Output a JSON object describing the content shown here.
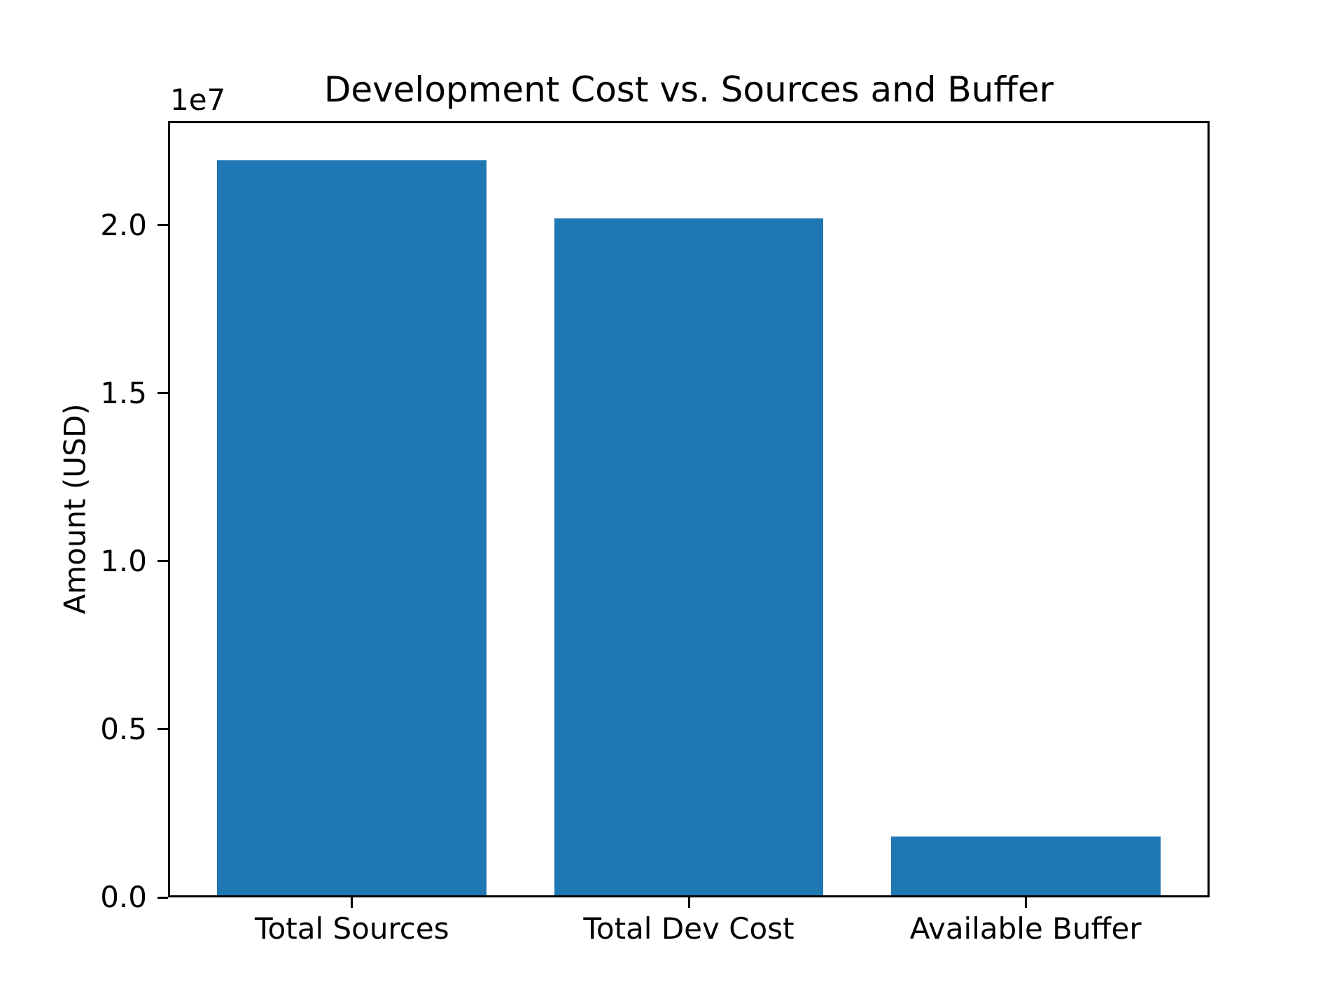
{
  "chart_data": {
    "type": "bar",
    "title": "Development Cost vs. Sources and Buffer",
    "xlabel": "",
    "ylabel": "Amount (USD)",
    "y_offset_label": "1e7",
    "categories": [
      "Total Sources",
      "Total Dev Cost",
      "Available Buffer"
    ],
    "values": [
      22000000,
      20250000,
      1750000
    ],
    "bar_color": "#1f77b4",
    "ylim": [
      0,
      23100000
    ],
    "yticks": {
      "values": [
        0,
        5000000,
        10000000,
        15000000,
        20000000
      ],
      "labels": [
        "0.0",
        "0.5",
        "1.0",
        "1.5",
        "2.0"
      ]
    },
    "grid": false,
    "legend_position": "none",
    "background_color": "#ffffff",
    "text_color": "#000000"
  }
}
